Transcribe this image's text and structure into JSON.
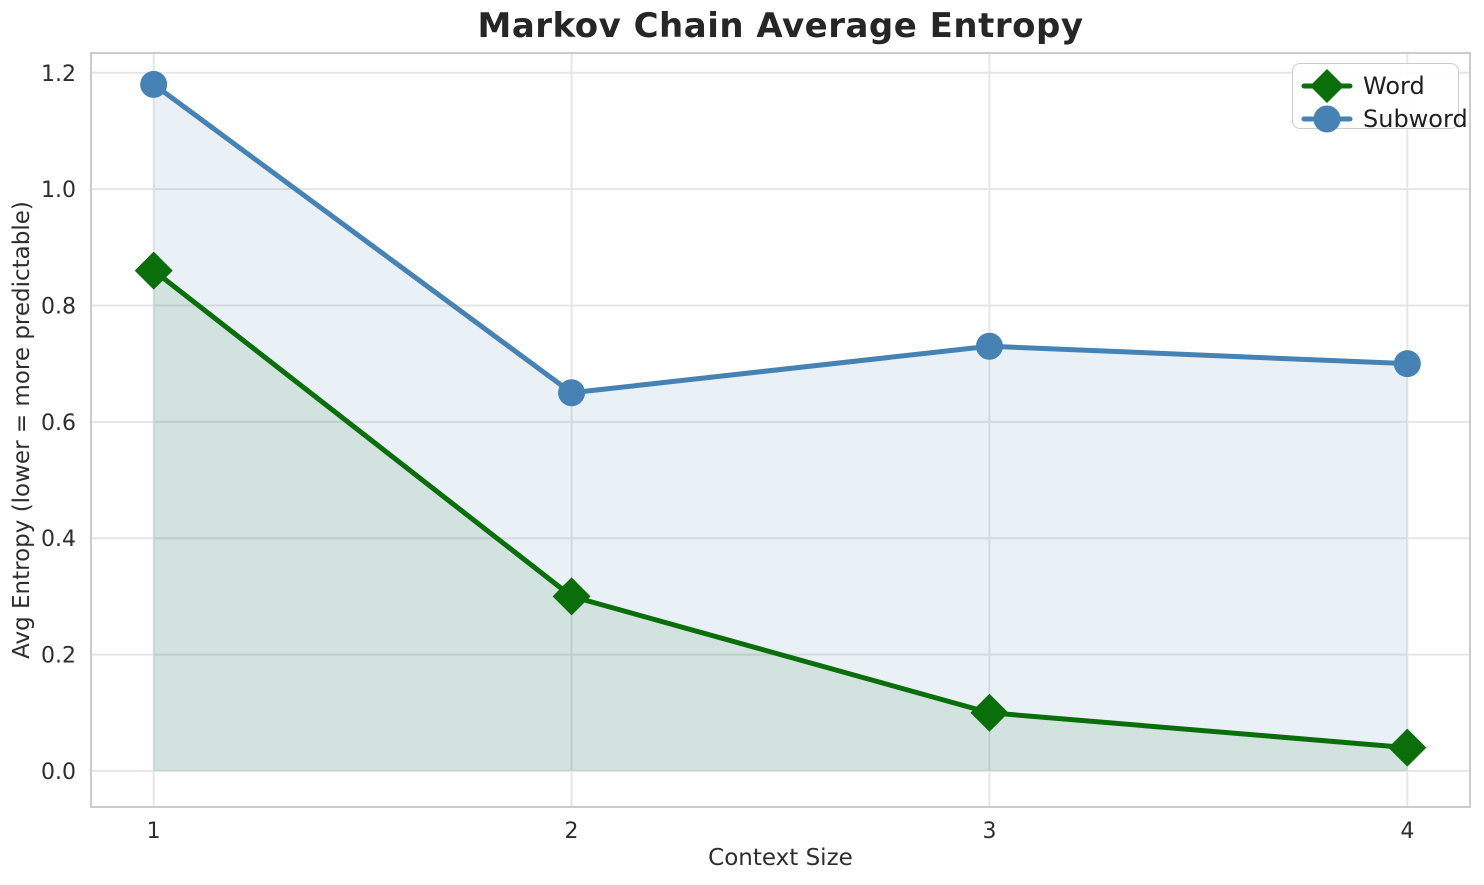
{
  "chart_data": {
    "type": "line",
    "title": "Markov Chain Average Entropy",
    "xlabel": "Context Size",
    "ylabel": "Avg Entropy (lower = more predictable)",
    "x": [
      1,
      2,
      3,
      4
    ],
    "x_tick_labels": [
      "1",
      "2",
      "3",
      "4"
    ],
    "y_ticks": [
      0.0,
      0.2,
      0.4,
      0.6,
      0.8,
      1.0,
      1.2
    ],
    "y_tick_labels": [
      "0.0",
      "0.2",
      "0.4",
      "0.6",
      "0.8",
      "1.0",
      "1.2"
    ],
    "xlim": [
      0.85,
      4.15
    ],
    "ylim": [
      -0.062,
      1.234
    ],
    "grid": true,
    "legend_position": "upper right",
    "area_fill_to_zero": true,
    "series": [
      {
        "name": "Word",
        "marker": "diamond",
        "color": "#0a6e0a",
        "fill_alpha": 0.1,
        "values": [
          0.86,
          0.3,
          0.1,
          0.04
        ]
      },
      {
        "name": "Subword",
        "marker": "circle",
        "color": "#4682b4",
        "fill_alpha": 0.12,
        "values": [
          1.18,
          0.65,
          0.73,
          0.7
        ]
      }
    ],
    "style": {
      "grid_color": "#e6e6e6",
      "border_color": "#cccccc",
      "tick_text_color": "#2e2e2e",
      "title_color": "#262626",
      "background": "#ffffff"
    }
  }
}
